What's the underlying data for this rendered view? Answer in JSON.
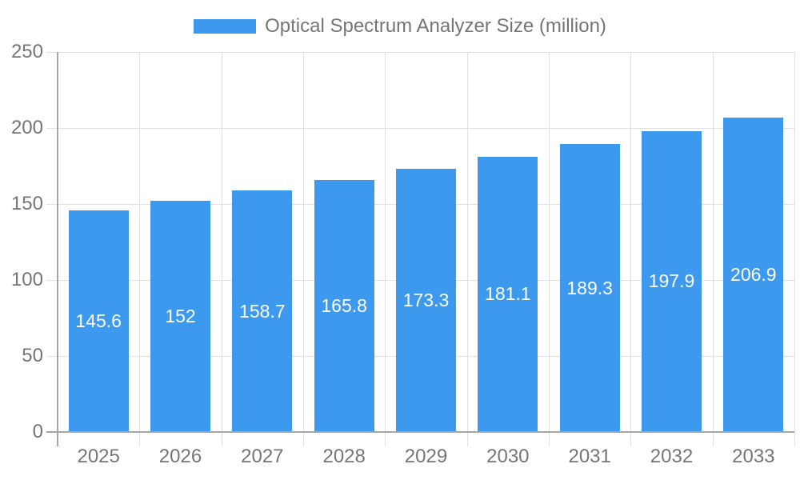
{
  "legend": {
    "label": "Optical Spectrum Analyzer Size (million)"
  },
  "chart_data": {
    "type": "bar",
    "title": "Optical Spectrum Analyzer Size (million)",
    "series_name": "Optical Spectrum Analyzer Size (million)",
    "categories": [
      "2025",
      "2026",
      "2027",
      "2028",
      "2029",
      "2030",
      "2031",
      "2032",
      "2033"
    ],
    "values": [
      145.6,
      152,
      158.7,
      165.8,
      173.3,
      181.1,
      189.3,
      197.9,
      206.9
    ],
    "value_labels": [
      "145.6",
      "152",
      "158.7",
      "165.8",
      "173.3",
      "181.1",
      "189.3",
      "197.9",
      "206.9"
    ],
    "xlabel": "",
    "ylabel": "",
    "ylim": [
      0,
      250
    ],
    "yticks": [
      0,
      50,
      100,
      150,
      200,
      250
    ],
    "ytick_labels": [
      "0",
      "50",
      "100",
      "150",
      "200",
      "250"
    ],
    "grid": true,
    "legend_position": "top-center",
    "value_label_position": "inside-center"
  },
  "colors": {
    "bar": "#3C99ED",
    "axis_line": "#A6A6A6",
    "gridline": "#E0E0E0",
    "tick_text": "#757575",
    "legend_text": "#757575",
    "value_text": "#FFFFFF",
    "background": "#FFFFFF"
  }
}
